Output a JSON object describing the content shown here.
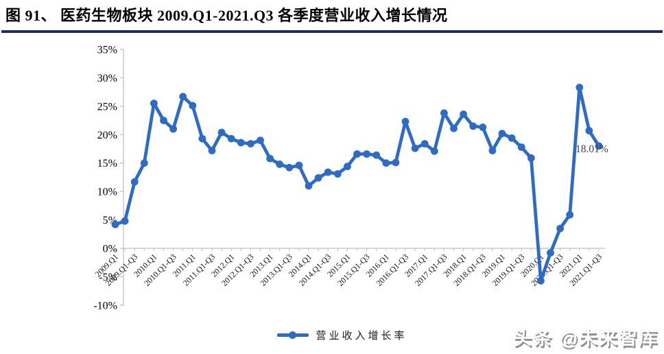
{
  "header": {
    "title": "图 91、 医药生物板块 2009.Q1-2021.Q3 各季度营业收入增长情况"
  },
  "footer": {
    "watermark": "头条 @未来智库"
  },
  "chart_data": {
    "type": "line",
    "title": "医药生物板块 2009.Q1-2021.Q3 各季度营业收入增长情况",
    "x_tick_labels": [
      "2009.Q1",
      "2009.Q1-Q3",
      "2010.Q1",
      "2010.Q1-Q3",
      "2011.Q1",
      "2011.Q1-Q3",
      "2012.Q1",
      "2012.Q1-Q3",
      "2013.Q1",
      "2013.Q1-Q3",
      "2014.Q1",
      "2014.Q1-Q3",
      "2015.Q1",
      "2015.Q1-Q3",
      "2016.Q1",
      "2016.Q1-Q3",
      "2017.Q1",
      "2017.Q1-Q3",
      "2018.Q1",
      "2018.Q1-Q3",
      "2019.Q1",
      "2019.Q1-Q3",
      "2020.Q1",
      "2020.Q1-Q3",
      "2021.Q1",
      "2021.Q1-Q3"
    ],
    "points_per_label": 2,
    "series": [
      {
        "name": "营业收入增长率",
        "color": "#2E6BC4",
        "marker": "circle",
        "values": [
          4.2,
          4.8,
          11.7,
          15.0,
          25.5,
          22.5,
          21.0,
          26.7,
          25.1,
          19.3,
          17.2,
          20.4,
          19.3,
          18.6,
          18.4,
          19.0,
          15.8,
          14.8,
          14.2,
          14.6,
          11.0,
          12.4,
          13.4,
          13.1,
          14.4,
          16.6,
          16.6,
          16.4,
          15.0,
          15.1,
          22.3,
          17.6,
          18.4,
          17.1,
          23.8,
          21.1,
          23.6,
          21.5,
          21.3,
          17.2,
          20.2,
          19.4,
          17.8,
          15.9,
          -5.7,
          -0.8,
          3.5,
          5.9,
          28.3,
          20.7,
          18.01
        ]
      }
    ],
    "ylim": [
      -10,
      35
    ],
    "y_tick_step": 5,
    "y_tick_suffix": "%",
    "y_tick_labels": [
      "35%",
      "30%",
      "25%",
      "20%",
      "15%",
      "10%",
      "5%",
      "0%",
      "-5%",
      "-10%"
    ],
    "grid": false,
    "legend_position": "bottom",
    "last_point_label": "18.01%",
    "axis_color": "#BFBFBF"
  }
}
